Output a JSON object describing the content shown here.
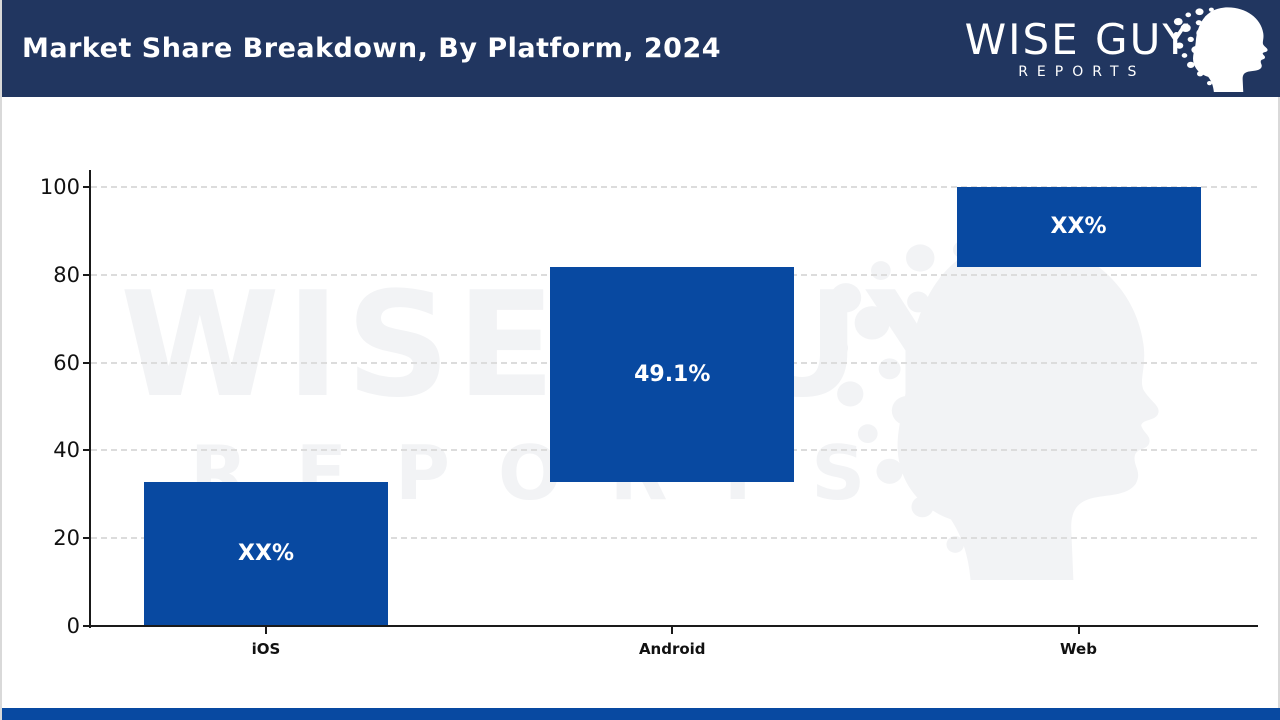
{
  "header": {
    "title": "Market Share Breakdown, By Platform, 2024",
    "logo": {
      "line1": "WISE GUY",
      "line2": "REPORTS"
    }
  },
  "watermark": {
    "line1": "WISE GUY",
    "line2": "REPORTS"
  },
  "colors": {
    "header_bg": "#213660",
    "bar_blue": "#0849a1",
    "footer_bar": "#0849a1",
    "gridline": "#dcdcdc",
    "watermark": "#f2f3f5",
    "bar_label_text": "#ffffff",
    "axis_text": "#111111"
  },
  "chart_data": {
    "type": "bar",
    "subtype": "waterfall",
    "title": "Market Share Breakdown, By Platform, 2024",
    "xlabel": "",
    "ylabel": "",
    "categories": [
      "iOS",
      "Android",
      "Web"
    ],
    "segments": [
      {
        "category": "iOS",
        "start": 0,
        "end": 32.7,
        "value": 32.7,
        "value_label": "XX%"
      },
      {
        "category": "Android",
        "start": 32.7,
        "end": 81.8,
        "value": 49.1,
        "value_label": "49.1%"
      },
      {
        "category": "Web",
        "start": 81.8,
        "end": 100,
        "value": 18.2,
        "value_label": "XX%"
      }
    ],
    "yticks": [
      0,
      20,
      40,
      60,
      80,
      100
    ],
    "ylim": [
      0,
      104
    ],
    "grid": "horizontal-dashed",
    "legend": "none",
    "bar_color": "#0849a1"
  }
}
